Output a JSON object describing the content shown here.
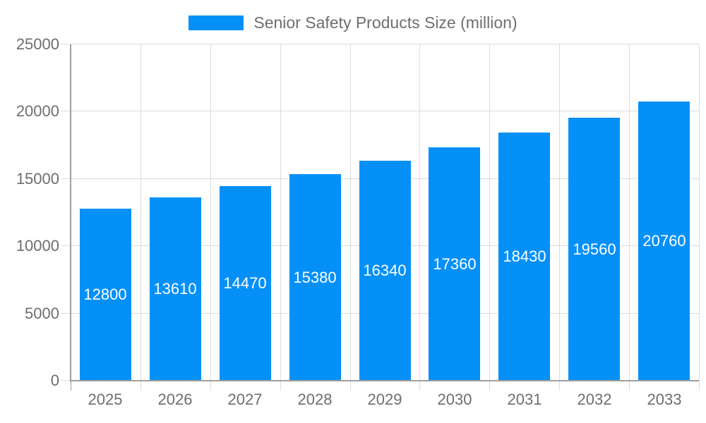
{
  "chart_data": {
    "type": "bar",
    "title": "Senior Safety Products Size (million)",
    "legend": "Senior Safety Products Size (million)",
    "legend_position": "top",
    "categories": [
      "2025",
      "2026",
      "2027",
      "2028",
      "2029",
      "2030",
      "2031",
      "2032",
      "2033"
    ],
    "values": [
      12800,
      13610,
      14470,
      15380,
      16340,
      17360,
      18430,
      19560,
      20760
    ],
    "xlabel": "",
    "ylabel": "",
    "ylim": [
      0,
      25000
    ],
    "ytick_interval": 5000,
    "ytick_labels": [
      "0",
      "5000",
      "10000",
      "15000",
      "20000",
      "25000"
    ],
    "grid": true,
    "colors": {
      "bar": "#0590f8",
      "value_label": "#ffffff",
      "axis": "#9e9e9e",
      "grid": "#dcdcdc",
      "text": "#6e6e6e",
      "background": "#ffffff"
    }
  }
}
